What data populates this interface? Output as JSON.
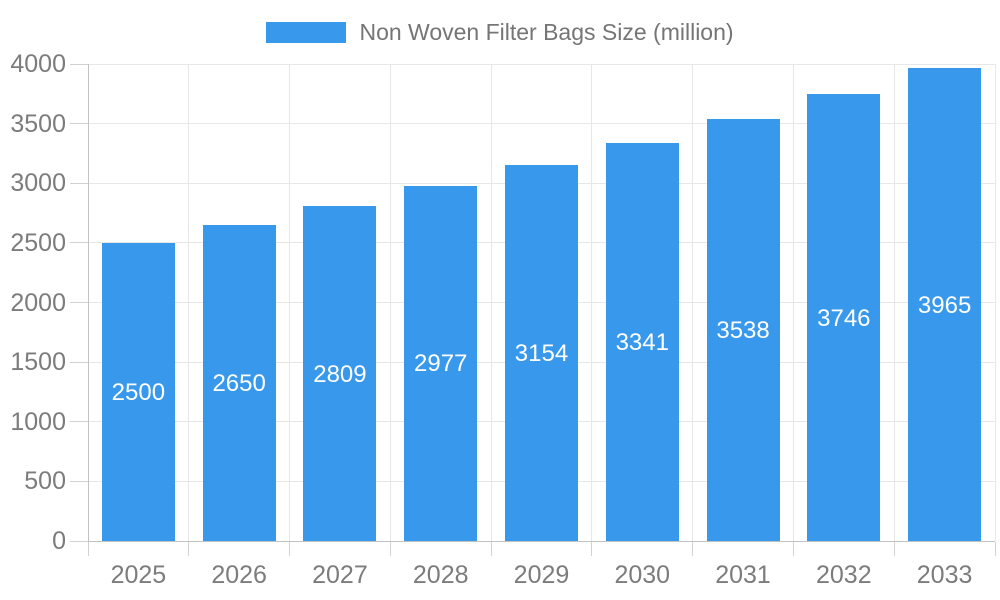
{
  "legend": {
    "label": "Non Woven Filter Bags Size (million)"
  },
  "chart_data": {
    "type": "bar",
    "title": "",
    "categories": [
      "2025",
      "2026",
      "2027",
      "2028",
      "2029",
      "2030",
      "2031",
      "2032",
      "2033"
    ],
    "values": [
      2500,
      2650,
      2809,
      2977,
      3154,
      3341,
      3538,
      3746,
      3965
    ],
    "series_name": "Non Woven Filter Bags Size (million)",
    "xlabel": "",
    "ylabel": "",
    "ylim": [
      0,
      4000
    ],
    "ytick_step": 500,
    "yticks": [
      0,
      500,
      1000,
      1500,
      2000,
      2500,
      3000,
      3500,
      4000
    ],
    "grid": true,
    "legend_position": "top-center",
    "data_labels_position": "inside-center"
  },
  "colors": {
    "bar": "#3899EC",
    "grid": "#E7E7E7",
    "axis": "#C2C2C2",
    "tick": "#D2D2D2",
    "axis_text": "#7C7C7C",
    "data_label_text": "#FFFFFF",
    "legend_text": "#757575",
    "background": "#FFFFFF"
  }
}
